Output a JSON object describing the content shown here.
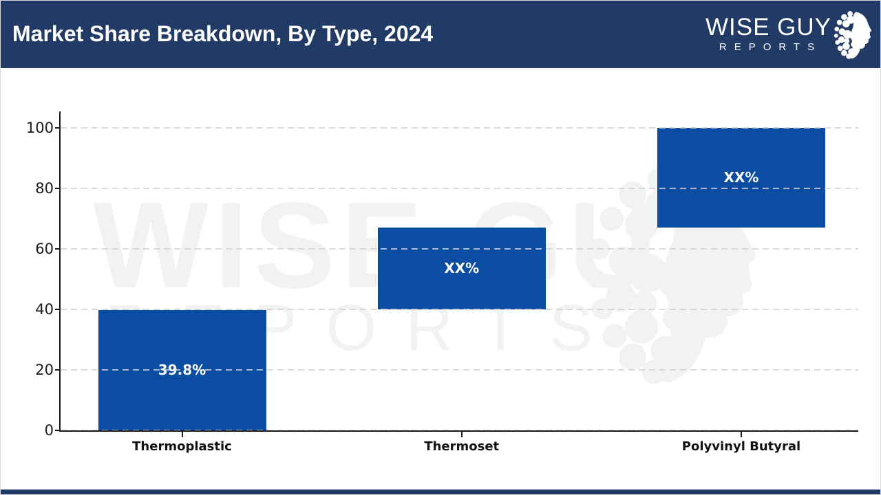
{
  "header": {
    "title": "Market Share Breakdown, By Type, 2024",
    "logo": {
      "line1": "WISE GUY",
      "line2": "REPORTS"
    }
  },
  "watermark": {
    "line1": "WISE GUY",
    "line2": "REPORTS"
  },
  "chart_data": {
    "type": "bar",
    "subtype": "floating-waterfall-segments",
    "title": "Market Share Breakdown, By Type, 2024",
    "categories": [
      "Thermoplastic",
      "Thermoset",
      "Polyvinyl Butyral"
    ],
    "segments": [
      {
        "category": "Thermoplastic",
        "start": 0,
        "end": 39.8,
        "label": "39.8%"
      },
      {
        "category": "Thermoset",
        "start": 40,
        "end": 67,
        "label": "XX%"
      },
      {
        "category": "Polyvinyl Butyral",
        "start": 67,
        "end": 100,
        "label": "XX%"
      }
    ],
    "y_ticks": [
      0,
      20,
      40,
      60,
      80,
      100
    ],
    "ylim": [
      0,
      106
    ],
    "xlabel": "",
    "ylabel": "",
    "grid": "horizontal-dashed",
    "legend": "none"
  },
  "colors": {
    "header_bg": "#213a66",
    "footer_bg": "#213a66",
    "bar": "#0b4da2",
    "bar_label": "#ffffff",
    "grid": "#d2d2d2",
    "axis": "#1a1a1a",
    "watermark": "#f2f2f3",
    "title_text": "#ffffff"
  }
}
